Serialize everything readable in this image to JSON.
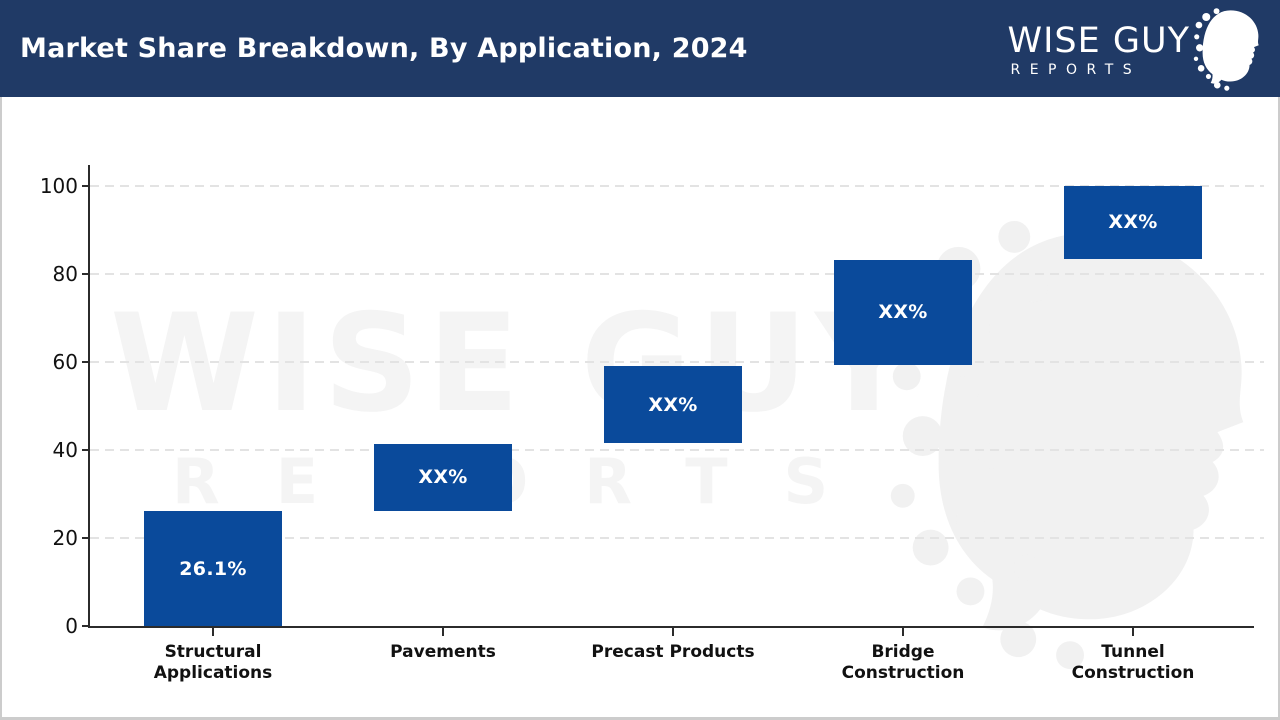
{
  "header": {
    "title": "Market Share Breakdown, By Application, 2024",
    "logo_word": "WISE GUY",
    "logo_sub": "REPORTS"
  },
  "watermark": {
    "line1": "WISE GUY",
    "line2": "REPORTS"
  },
  "colors": {
    "header_bg": "#203a66",
    "bar": "#0a4a9b",
    "bar_label": "#ffffff",
    "axis": "#2b2b2b",
    "grid": "#e3e3e3",
    "watermark": "#f4f4f4",
    "border": "#cccccc"
  },
  "chart_data": {
    "type": "bar",
    "subtype": "waterfall",
    "title": "Market Share Breakdown, By Application, 2024",
    "xlabel": "",
    "ylabel": "",
    "ylim": [
      0,
      100
    ],
    "yticks": [
      0,
      20,
      40,
      60,
      80,
      100
    ],
    "grid": "horizontal-dashed",
    "legend": "none",
    "categories": [
      "Structural Applications",
      "Pavements",
      "Precast Products",
      "Bridge Construction",
      "Tunnel Construction"
    ],
    "bars": [
      {
        "category": "Structural Applications",
        "category_lines": [
          "Structural",
          "Applications"
        ],
        "start": 0,
        "end": 26.1,
        "value_label": "26.1%"
      },
      {
        "category": "Pavements",
        "category_lines": [
          "Pavements"
        ],
        "start": 26.1,
        "end": 41.4,
        "value_label": "XX%"
      },
      {
        "category": "Precast Products",
        "category_lines": [
          "Precast Products"
        ],
        "start": 41.6,
        "end": 59.0,
        "value_label": "XX%"
      },
      {
        "category": "Bridge Construction",
        "category_lines": [
          "Bridge",
          "Construction"
        ],
        "start": 59.4,
        "end": 83.2,
        "value_label": "XX%"
      },
      {
        "category": "Tunnel Construction",
        "category_lines": [
          "Tunnel",
          "Construction"
        ],
        "start": 83.5,
        "end": 100,
        "value_label": "XX%"
      }
    ]
  }
}
